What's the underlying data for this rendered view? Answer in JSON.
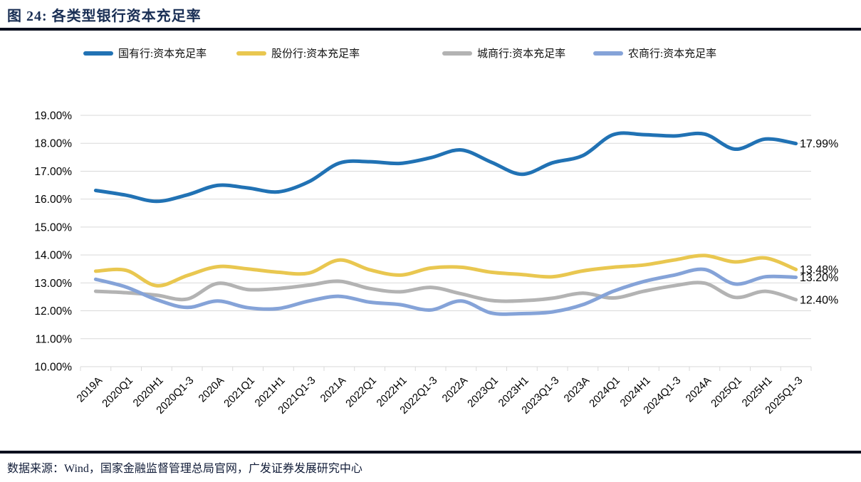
{
  "header": {
    "title": "图 24: 各类型银行资本充足率"
  },
  "footer": {
    "source": "数据来源：Wind，国家金融监督管理总局官网，广发证券发展研究中心"
  },
  "colors": {
    "title_text": "#1a2f55",
    "rule": "#0b0f1e",
    "gridline": "#d9d9d9",
    "axis_text": "#000000",
    "end_label_text": "#000000",
    "state_owned": "#2172b4",
    "joint_stock": "#e9c750",
    "city_commercial": "#b3b3b3",
    "rural_commercial": "#85a3d8"
  },
  "chart_data": {
    "type": "line",
    "title": "图 24: 各类型银行资本充足率",
    "categories": [
      "2019A",
      "2020Q1",
      "2020H1",
      "2020Q1-3",
      "2020A",
      "2021Q1",
      "2021H1",
      "2021Q1-3",
      "2021A",
      "2022Q1",
      "2022H1",
      "2022Q1-3",
      "2022A",
      "2023Q1",
      "2023H1",
      "2023Q1-3",
      "2023A",
      "2024Q1",
      "2024H1",
      "2024Q1-3",
      "2024A",
      "2025Q1",
      "2025H1",
      "2025Q1-3"
    ],
    "series": [
      {
        "name": "国有行:资本充足率",
        "slug": "state-owned-banks",
        "color": "#2172b4",
        "end_label": "17.99%",
        "values": [
          16.31,
          16.14,
          15.92,
          16.15,
          16.49,
          16.4,
          16.26,
          16.62,
          17.29,
          17.34,
          17.28,
          17.48,
          17.76,
          17.32,
          16.89,
          17.3,
          17.56,
          18.31,
          18.31,
          18.26,
          18.33,
          17.79,
          18.15,
          17.99
        ]
      },
      {
        "name": "股份行:资本充足率",
        "slug": "joint-stock-banks",
        "color": "#e9c750",
        "end_label": "13.48%",
        "values": [
          13.42,
          13.45,
          12.9,
          13.26,
          13.58,
          13.5,
          13.38,
          13.35,
          13.82,
          13.47,
          13.28,
          13.53,
          13.56,
          13.38,
          13.3,
          13.22,
          13.43,
          13.56,
          13.64,
          13.82,
          13.98,
          13.75,
          13.89,
          13.48
        ]
      },
      {
        "name": "城商行:资本充足率",
        "slug": "city-commercial-banks",
        "color": "#b3b3b3",
        "end_label": "12.40%",
        "values": [
          12.7,
          12.65,
          12.56,
          12.42,
          12.98,
          12.76,
          12.8,
          12.92,
          13.06,
          12.8,
          12.68,
          12.84,
          12.61,
          12.37,
          12.36,
          12.45,
          12.63,
          12.46,
          12.7,
          12.9,
          12.99,
          12.48,
          12.7,
          12.4
        ]
      },
      {
        "name": "农商行:资本充足率",
        "slug": "rural-commercial-banks",
        "color": "#85a3d8",
        "end_label": "13.20%",
        "values": [
          13.13,
          12.85,
          12.4,
          12.12,
          12.35,
          12.11,
          12.08,
          12.35,
          12.52,
          12.31,
          12.22,
          12.03,
          12.35,
          11.92,
          11.9,
          11.96,
          12.22,
          12.7,
          13.05,
          13.28,
          13.48,
          12.96,
          13.22,
          13.2
        ]
      }
    ],
    "ylim": [
      10,
      19
    ],
    "ytick_step": 1,
    "ytick_format": "0.00%",
    "grid": "horizontal",
    "legend_position": "top",
    "x_label_rotation": -45
  }
}
